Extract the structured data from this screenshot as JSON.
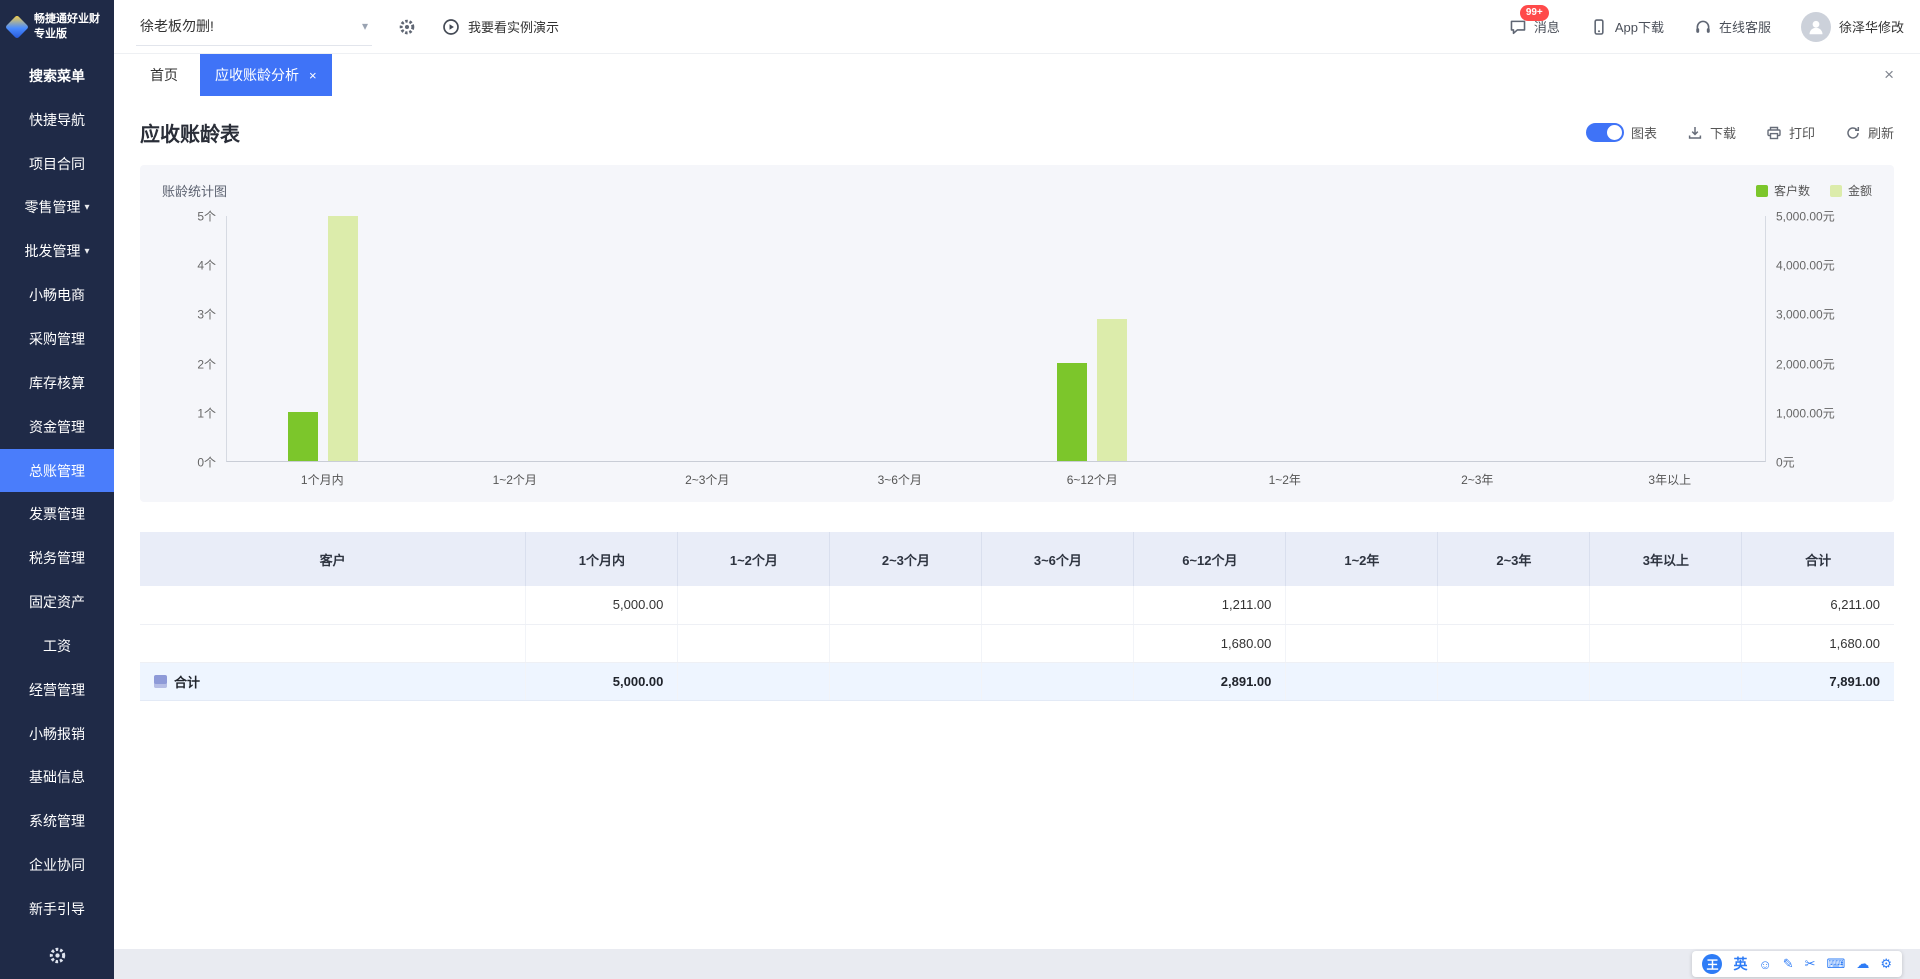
{
  "app": {
    "name_line1": "畅捷通好业财",
    "name_line2": "专业版"
  },
  "sidebar": {
    "items": [
      {
        "label": "搜索菜单"
      },
      {
        "label": "快捷导航"
      },
      {
        "label": "项目合同"
      },
      {
        "label": "零售管理",
        "has_submenu": true
      },
      {
        "label": "批发管理",
        "has_submenu": true
      },
      {
        "label": "小畅电商"
      },
      {
        "label": "采购管理"
      },
      {
        "label": "库存核算"
      },
      {
        "label": "资金管理"
      },
      {
        "label": "总账管理",
        "active": true
      },
      {
        "label": "发票管理"
      },
      {
        "label": "税务管理"
      },
      {
        "label": "固定资产"
      },
      {
        "label": "工资"
      },
      {
        "label": "经营管理"
      },
      {
        "label": "小畅报销"
      },
      {
        "label": "基础信息"
      },
      {
        "label": "系统管理"
      },
      {
        "label": "企业协同"
      },
      {
        "label": "新手引导"
      }
    ]
  },
  "topbar": {
    "company_selector": "徐老板勿删!",
    "demo_link": "我要看实例演示",
    "message_label": "消息",
    "message_badge": "99+",
    "app_download": "App下载",
    "online_service": "在线客服",
    "username": "徐泽华修改"
  },
  "tabs": {
    "home": "首页",
    "active": "应收账龄分析"
  },
  "page": {
    "title": "应收账龄表",
    "chart_toggle_label": "图表",
    "download_label": "下载",
    "print_label": "打印",
    "refresh_label": "刷新"
  },
  "chart_data": {
    "type": "bar",
    "title": "账龄统计图",
    "categories": [
      "1个月内",
      "1~2个月",
      "2~3个月",
      "3~6个月",
      "6~12个月",
      "1~2年",
      "2~3年",
      "3年以上"
    ],
    "series": [
      {
        "name": "客户数",
        "axis": "left",
        "color": "#7cc62b",
        "values": [
          1,
          0,
          0,
          0,
          2,
          0,
          0,
          0
        ]
      },
      {
        "name": "金额",
        "axis": "right",
        "color": "#dcecab",
        "values": [
          5000,
          0,
          0,
          0,
          2891,
          0,
          0,
          0
        ]
      }
    ],
    "left_axis": {
      "unit": "个",
      "max": 5,
      "ticks": [
        "5个",
        "4个",
        "3个",
        "2个",
        "1个",
        "0个"
      ]
    },
    "right_axis": {
      "unit": "元",
      "max": 5000,
      "ticks": [
        "5,000.00元",
        "4,000.00元",
        "3,000.00元",
        "2,000.00元",
        "1,000.00元",
        "0元"
      ]
    },
    "legend_position": "top-right",
    "grid": false
  },
  "table": {
    "headers": [
      "客户",
      "1个月内",
      "1~2个月",
      "2~3个月",
      "3~6个月",
      "6~12个月",
      "1~2年",
      "2~3年",
      "3年以上",
      "合计"
    ],
    "rows": [
      {
        "customer_redacted": true,
        "values": [
          "5,000.00",
          "",
          "",
          "",
          "1,211.00",
          "",
          "",
          "",
          "6,211.00"
        ]
      },
      {
        "customer_redacted": true,
        "values": [
          "",
          "",
          "",
          "",
          "1,680.00",
          "",
          "",
          "",
          "1,680.00"
        ]
      }
    ],
    "total_row": {
      "label": "合计",
      "values": [
        "5,000.00",
        "",
        "",
        "",
        "2,891.00",
        "",
        "",
        "",
        "7,891.00"
      ]
    }
  },
  "ime": {
    "lang_badge": "王",
    "mode": "英",
    "icon_names": [
      "emoji-icon",
      "handwriting-icon",
      "screenshot-icon",
      "keyboard-icon",
      "cloud-icon",
      "settings-icon"
    ]
  },
  "icons": {
    "chevron_down": "▾",
    "close": "×",
    "ime_glyphs": [
      "☺",
      "✎",
      "✂",
      "⌨",
      "☁",
      "⚙"
    ]
  },
  "colors": {
    "accent": "#3f73f7",
    "sidebar_bg": "#1f2a47",
    "sidebar_active": "#4a7dfb",
    "series_customer_count": "#7cc62b",
    "series_amount": "#dcecab",
    "badge_red": "#ff4a4a",
    "table_header_bg": "#e9edf8",
    "total_row_bg": "#eef5ff"
  }
}
